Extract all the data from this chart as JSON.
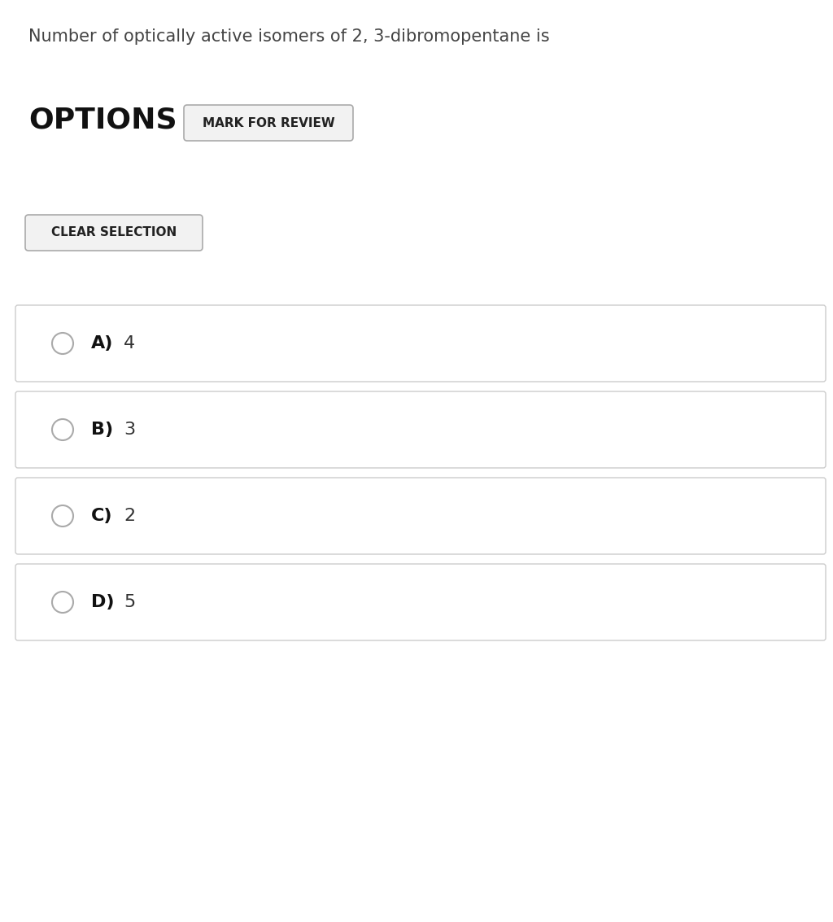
{
  "question": "Number of optically active isomers of 2, 3-dibromopentane is",
  "options_label": "OPTIONS",
  "mark_for_review": "MARK FOR REVIEW",
  "clear_selection": "CLEAR SELECTION",
  "options": [
    {
      "letter": "A",
      "value": "4"
    },
    {
      "letter": "B",
      "value": "3"
    },
    {
      "letter": "C",
      "value": "2"
    },
    {
      "letter": "D",
      "value": "5"
    }
  ],
  "bg_color": "#ffffff",
  "text_color": "#444444",
  "option_border_color": "#cccccc",
  "option_bg_color": "#ffffff",
  "button_border_color": "#aaaaaa",
  "question_fontsize": 15,
  "options_label_fontsize": 26,
  "mark_review_fontsize": 11,
  "clear_selection_fontsize": 11,
  "option_letter_fontsize": 16,
  "option_value_fontsize": 16,
  "radio_color": "#aaaaaa",
  "fig_width": 10.24,
  "fig_height": 11.33,
  "dpi": 100
}
